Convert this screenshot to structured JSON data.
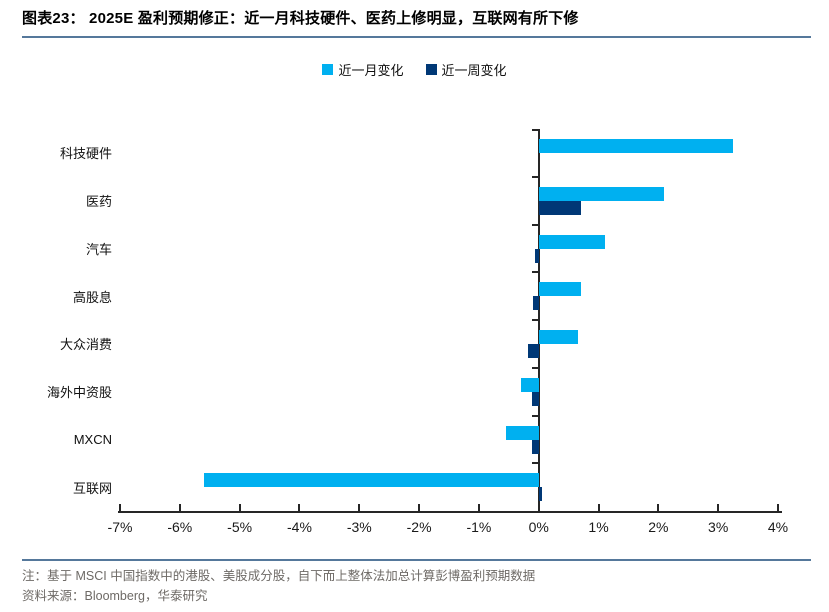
{
  "title": "图表23：  2025E 盈利预期修正：近一月科技硬件、医药上修明显，互联网有所下修",
  "legend": [
    {
      "key": "monthly-change",
      "label": "近一月变化",
      "color": "#00B0F0"
    },
    {
      "key": "weekly-change",
      "label": "近一周变化",
      "color": "#003876"
    }
  ],
  "chart_data": {
    "type": "bar",
    "orientation": "horizontal",
    "title": "2025E 盈利预期修正",
    "categories": [
      "科技硬件",
      "医药",
      "汽车",
      "高股息",
      "大众消费",
      "海外中资股",
      "MXCN",
      "互联网"
    ],
    "series": [
      {
        "name": "近一月变化",
        "key": "monthly-change",
        "color": "#00B0F0",
        "values": [
          3.25,
          2.1,
          1.1,
          0.7,
          0.65,
          -0.3,
          -0.55,
          -5.6
        ]
      },
      {
        "name": "近一周变化",
        "key": "weekly-change",
        "color": "#003876",
        "values": [
          0.0,
          0.7,
          -0.06,
          -0.1,
          -0.18,
          -0.12,
          -0.12,
          0.05
        ]
      }
    ],
    "xlabel": "",
    "ylabel": "",
    "xlim": [
      -7,
      4
    ],
    "x_tick_step": 1,
    "x_tick_labels": [
      "-7%",
      "-6%",
      "-5%",
      "-4%",
      "-3%",
      "-2%",
      "-1%",
      "0%",
      "1%",
      "2%",
      "3%",
      "4%"
    ],
    "grid": false,
    "legend_position": "top"
  },
  "footnotes": {
    "note": "注：基于 MSCI 中国指数中的港股、美股成分股，自下而上整体法加总计算彭博盈利预期数据",
    "source": "资料来源：Bloomberg，华泰研究"
  },
  "colors": {
    "monthly_bar": "#00B0F0",
    "weekly_bar": "#003876",
    "axis": "#262626",
    "divider_rule": "#55789B",
    "note_text": "#6E6A66",
    "title_text": "#000000"
  }
}
